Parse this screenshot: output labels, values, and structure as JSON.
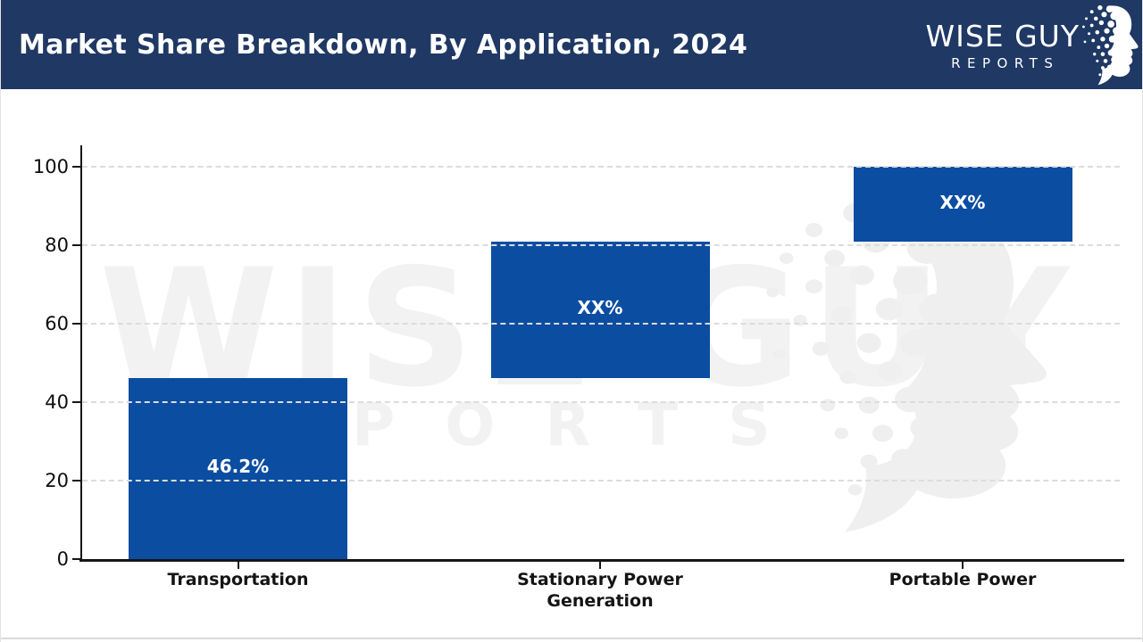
{
  "header": {
    "title": "Market Share Breakdown, By Application, 2024",
    "logo": {
      "line1": "WISE GUY",
      "line2": "REPORTS"
    }
  },
  "watermark": {
    "line1": "WISE GUY",
    "line2": "REPORTS"
  },
  "chart_data": {
    "type": "bar",
    "subtype": "floating-waterfall",
    "title": "Market Share Breakdown, By Application, 2024",
    "categories": [
      "Transportation",
      "Stationary Power\nGeneration",
      "Portable Power"
    ],
    "segments": [
      {
        "category": "Transportation",
        "start": 0,
        "end": 46.2,
        "label": "46.2%"
      },
      {
        "category": "Stationary Power Generation",
        "start": 46.2,
        "end": 81,
        "label": "XX%"
      },
      {
        "category": "Portable Power",
        "start": 81,
        "end": 100,
        "label": "XX%"
      }
    ],
    "ylim": [
      0,
      100
    ],
    "yticks": [
      0,
      20,
      40,
      60,
      80,
      100
    ],
    "xlabel": "",
    "ylabel": "",
    "legend": "none",
    "grid": {
      "horizontal": true,
      "style": "dashed",
      "drawn_over_bars": true
    },
    "bar_color": "#0b4da1",
    "bar_label_color": "#ffffff",
    "grid_color": "#dcdcdc",
    "axis_color": "#151515"
  },
  "colors": {
    "header_bg": "#1f3864",
    "header_text": "#ffffff",
    "watermark": "#f2f2f2",
    "background": "#ffffff"
  }
}
